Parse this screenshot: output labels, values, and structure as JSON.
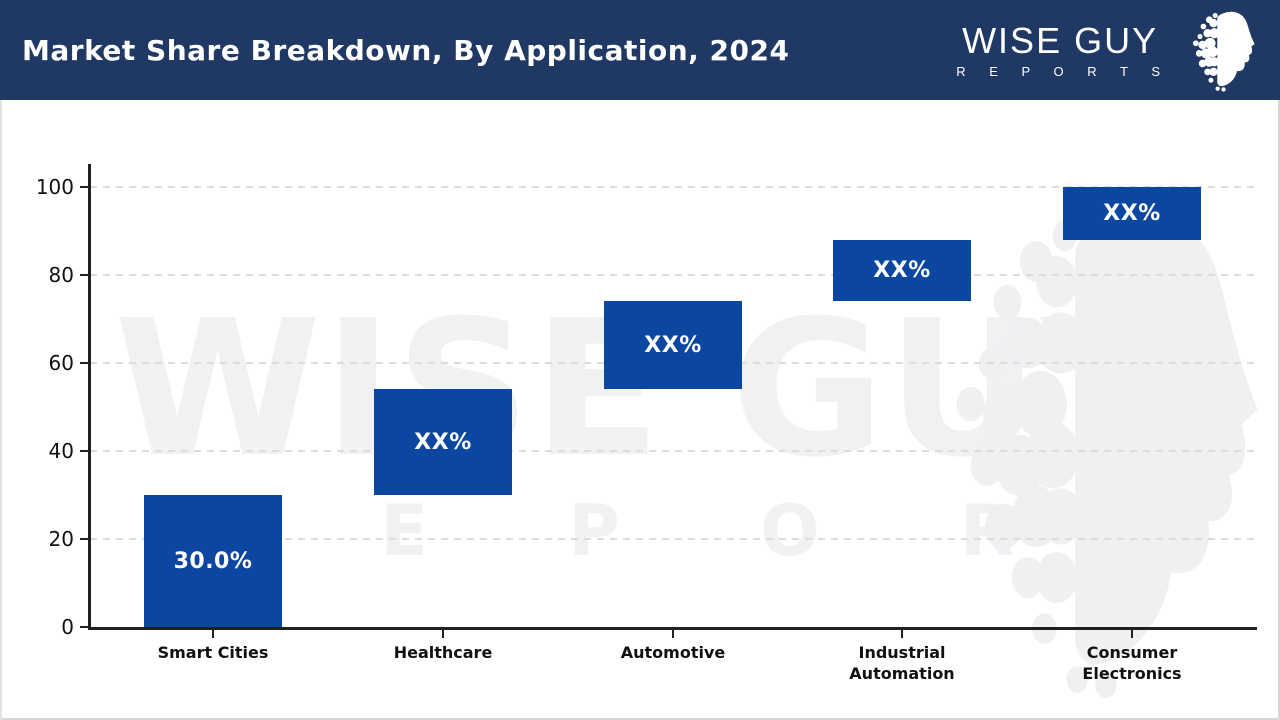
{
  "header": {
    "bg_color": "#1f3864",
    "title": "Market Share Breakdown, By Application, 2024",
    "logo": {
      "name": "WISE GUY",
      "sub": "R E P O R T S"
    }
  },
  "watermark": {
    "line1": "WISE GUY",
    "line2": "R E P O R T S"
  },
  "chart_data": {
    "type": "bar",
    "subtype": "waterfall",
    "title": "Market Share Breakdown, By Application, 2024",
    "categories": [
      "Smart Cities",
      "Healthcare",
      "Automotive",
      "Industrial Automation",
      "Consumer Electronics"
    ],
    "category_lines": [
      [
        "Smart Cities"
      ],
      [
        "Healthcare"
      ],
      [
        "Automotive"
      ],
      [
        "Industrial",
        "Automation"
      ],
      [
        "Consumer",
        "Electronics"
      ]
    ],
    "segments": [
      {
        "category": "Smart Cities",
        "start": 0,
        "end": 30,
        "label": "30.0%"
      },
      {
        "category": "Healthcare",
        "start": 30,
        "end": 54,
        "label": "XX%"
      },
      {
        "category": "Automotive",
        "start": 54,
        "end": 74,
        "label": "XX%"
      },
      {
        "category": "Industrial Automation",
        "start": 74,
        "end": 88,
        "label": "XX%"
      },
      {
        "category": "Consumer Electronics",
        "start": 88,
        "end": 100,
        "label": "XX%"
      }
    ],
    "ylim": [
      0,
      100
    ],
    "yticks": [
      0,
      20,
      40,
      60,
      80,
      100
    ],
    "grid": {
      "orientation": "horizontal",
      "style": "dashed",
      "color": "#dcdcdc"
    },
    "legend": null,
    "bar_color": "#0b47a1",
    "bar_label_color": "#ffffff",
    "axis_color": "#212121",
    "tick_label_color": "#111111"
  }
}
